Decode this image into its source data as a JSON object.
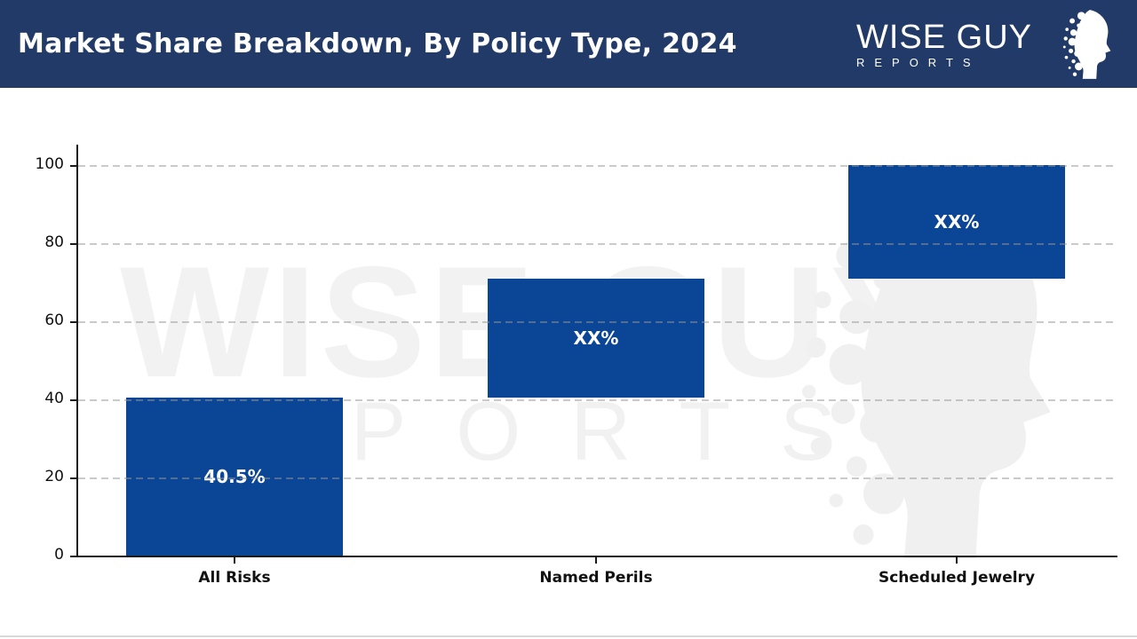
{
  "header": {
    "title": "Market Share Breakdown, By Policy Type, 2024",
    "bg_color": "#223a68",
    "logo": {
      "line1": "WISE GUY",
      "line2": "REPORTS"
    }
  },
  "watermark": {
    "line1": "WISE GUY",
    "line2": "REPORTS"
  },
  "chart_data": {
    "type": "bar",
    "variant": "waterfall-stacked-segments",
    "title": "Market Share Breakdown, By Policy Type, 2024",
    "categories": [
      "All Risks",
      "Named Perils",
      "Scheduled Jewelry"
    ],
    "segments": [
      {
        "category": "All Risks",
        "start": 0,
        "end": 40.5,
        "label": "40.5%"
      },
      {
        "category": "Named Perils",
        "start": 40.5,
        "end": 71,
        "label": "XX%"
      },
      {
        "category": "Scheduled Jewelry",
        "start": 71,
        "end": 100,
        "label": "XX%"
      }
    ],
    "xlabel": "",
    "ylabel": "",
    "ylim": [
      0,
      105
    ],
    "yticks": [
      0,
      20,
      40,
      60,
      80,
      100
    ],
    "grid": "horizontal-dashed",
    "legend": "none",
    "bar_color": "#0a4596",
    "bar_label_color": "#ffffff",
    "axis_color": "#1a1a1a",
    "tick_label_color": "#111111",
    "grid_color": "rgba(150,150,150,0.5)"
  }
}
